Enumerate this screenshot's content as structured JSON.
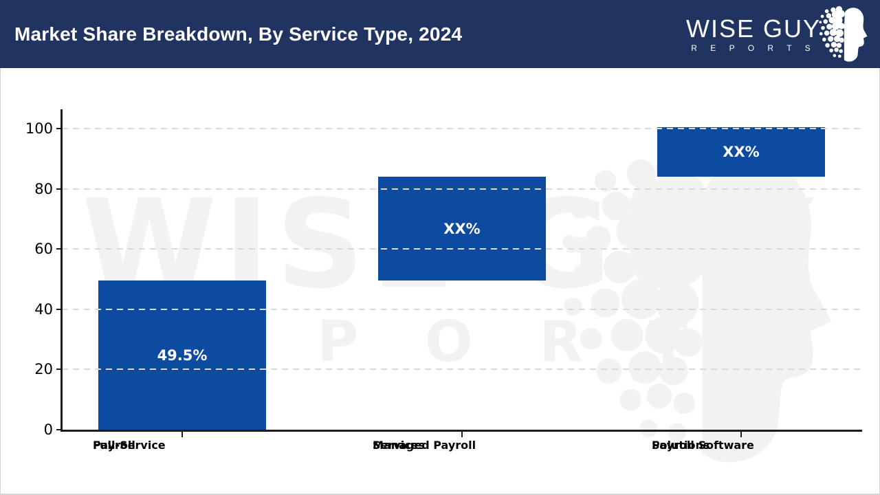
{
  "header": {
    "title": "Market Share Breakdown, By Service Type, 2024",
    "logo": {
      "line1": "WISE GUY",
      "line2": "R E P O R T S"
    }
  },
  "watermark": {
    "line1": "WISE GUY",
    "line2": "R E P O R T S"
  },
  "chart_data": {
    "type": "bar",
    "subtype": "waterfall",
    "title": "Market Share Breakdown, By Service Type, 2024",
    "categories": [
      "Full-Service Payroll",
      "Managed Payroll Services",
      "Payroll Software Solutions"
    ],
    "category_lines": [
      [
        "Full-Service",
        "Payroll"
      ],
      [
        "Managed Payroll",
        "Services"
      ],
      [
        "Payroll Software",
        "Solutions"
      ]
    ],
    "segments": [
      {
        "start": 0,
        "end": 49.5,
        "value": 49.5,
        "label": "49.5%"
      },
      {
        "start": 49.5,
        "end": 84,
        "value": 34.5,
        "label": "XX%"
      },
      {
        "start": 84,
        "end": 100.5,
        "value": 16.5,
        "label": "XX%"
      }
    ],
    "yticks": [
      0,
      20,
      40,
      60,
      80,
      100
    ],
    "ylim": [
      0,
      106
    ],
    "xlabel": "",
    "ylabel": "",
    "grid": true,
    "legend": false
  },
  "colors": {
    "header_bg": "#213461",
    "header_text": "#ffffff",
    "bar": "#0d4ba0",
    "bar_label": "#ffffff",
    "grid": "#dadada",
    "axis": "#1c1c1c",
    "tick_text": "#000000",
    "watermark": "#f2f2f2",
    "card_border": "#d4d4d4"
  }
}
